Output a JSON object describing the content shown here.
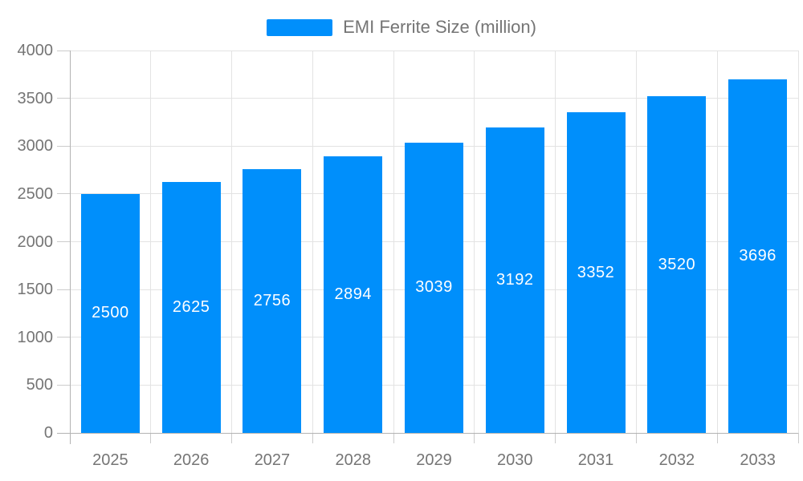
{
  "chart_data": {
    "type": "bar",
    "title": "EMI Ferrite Size (million)",
    "categories": [
      "2025",
      "2026",
      "2027",
      "2028",
      "2029",
      "2030",
      "2031",
      "2032",
      "2033"
    ],
    "values": [
      2500,
      2625,
      2756,
      2894,
      3039,
      3192,
      3352,
      3520,
      3696
    ],
    "xlabel": "",
    "ylabel": "",
    "ylim": [
      0,
      4000
    ],
    "y_ticks": [
      0,
      500,
      1000,
      1500,
      2000,
      2500,
      3000,
      3500,
      4000
    ],
    "grid": true,
    "legend_position": "top-center",
    "bar_labels_inside": true
  },
  "legend": {
    "series_label": "EMI Ferrite Size (million)"
  },
  "colors": {
    "bar": "#008FFB",
    "bar_label": "#ffffff",
    "grid": "#e3e3e3",
    "tick": "#cccccc",
    "axis": "#b3b3b3",
    "text": "#757575",
    "background": "#ffffff"
  }
}
